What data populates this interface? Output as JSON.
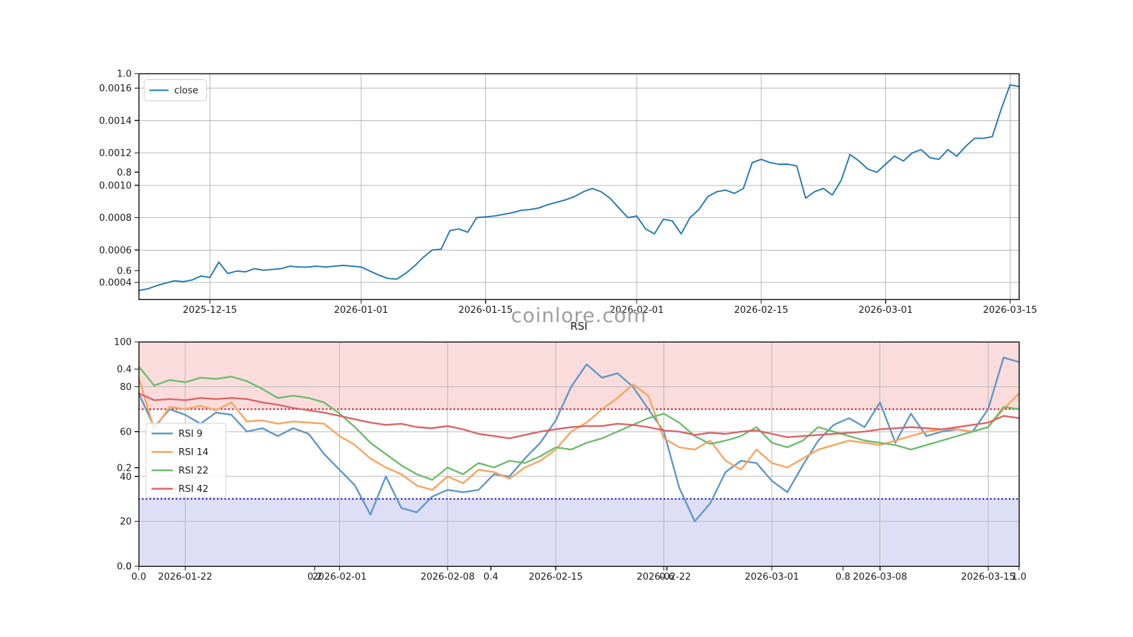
{
  "figure": {
    "watermark": "coinlore.com",
    "rsi_title": "RSI"
  },
  "chart_data": [
    {
      "type": "line",
      "name": "price",
      "legend": [
        "close"
      ],
      "x_tick_labels": [
        "2025-12-15",
        "2026-01-01",
        "2026-01-15",
        "2026-02-01",
        "2026-02-15",
        "2026-03-01",
        "2026-03-15"
      ],
      "x_tick_day_index": [
        8,
        25,
        39,
        56,
        70,
        84,
        98
      ],
      "y_tick_labels": [
        "0.0004",
        "0.0006",
        "0.0008",
        "0.0010",
        "0.0012",
        "0.0014",
        "0.0016"
      ],
      "y_tick_values": [
        0.0004,
        0.0006,
        0.0008,
        0.001,
        0.0012,
        0.0014,
        0.0016
      ],
      "ylim": [
        0.000295,
        0.00169
      ],
      "grid": true,
      "series": [
        {
          "name": "close",
          "color": "#1f77b4",
          "width": 1.9,
          "values": [
            0.00035,
            0.00036,
            0.00038,
            0.000395,
            0.00041,
            0.000405,
            0.000415,
            0.00044,
            0.00043,
            0.000525,
            0.000455,
            0.00047,
            0.000465,
            0.000485,
            0.000475,
            0.00048,
            0.000485,
            0.0005,
            0.000495,
            0.000495,
            0.0005,
            0.000495,
            0.0005,
            0.000505,
            0.0005,
            0.000495,
            0.00047,
            0.000445,
            0.000425,
            0.00042,
            0.000455,
            0.0005,
            0.000555,
            0.0006,
            0.000605,
            0.00072,
            0.00073,
            0.00071,
            0.0008,
            0.000805,
            0.00081,
            0.00082,
            0.00083,
            0.000845,
            0.00085,
            0.00086,
            0.00088,
            0.000895,
            0.00091,
            0.00093,
            0.00096,
            0.00098,
            0.00096,
            0.00092,
            0.00086,
            0.0008,
            0.00081,
            0.00073,
            0.0007,
            0.00079,
            0.00078,
            0.0007,
            0.0008,
            0.00085,
            0.00093,
            0.00096,
            0.00097,
            0.00095,
            0.00098,
            0.00114,
            0.00116,
            0.00114,
            0.00113,
            0.00113,
            0.00112,
            0.00092,
            0.00096,
            0.00098,
            0.00094,
            0.00103,
            0.00119,
            0.00115,
            0.0011,
            0.00108,
            0.00113,
            0.00118,
            0.00115,
            0.0012,
            0.00122,
            0.00117,
            0.00116,
            0.00122,
            0.00118,
            0.00124,
            0.00129,
            0.00129,
            0.0013,
            0.00147,
            0.00162,
            0.00161
          ]
        }
      ]
    },
    {
      "type": "line",
      "name": "rsi",
      "title": "RSI",
      "legend": [
        "RSI 9",
        "RSI 14",
        "RSI 22",
        "RSI 42"
      ],
      "x_tick_labels": [
        "2026-01-22",
        "2026-02-01",
        "2026-02-08",
        "2026-02-15",
        "2026-02-22",
        "2026-03-01",
        "2026-03-08",
        "2026-03-15"
      ],
      "x_tick_day_index": [
        3,
        13,
        20,
        27,
        34,
        41,
        48,
        55
      ],
      "y_tick_labels": [
        "0",
        "20",
        "40",
        "60",
        "80",
        "100"
      ],
      "y_tick_values": [
        0,
        20,
        40,
        60,
        80,
        100
      ],
      "ylim": [
        0,
        100
      ],
      "grid": true,
      "overbought_level": 70,
      "oversold_level": 30,
      "series": [
        {
          "name": "RSI 9",
          "color": "#5f97c6",
          "width": 2.4,
          "values": [
            77,
            62,
            70,
            67.5,
            63.5,
            68.5,
            67.5,
            60,
            61.5,
            58,
            61.5,
            59,
            50,
            43,
            36,
            23,
            40,
            26,
            24,
            31,
            34,
            33,
            34,
            41,
            40,
            48,
            55,
            65,
            80,
            90,
            84,
            86,
            80,
            70,
            60,
            35,
            20,
            28,
            42,
            47,
            46,
            38,
            33,
            45,
            56,
            63,
            66,
            62,
            73,
            55,
            68,
            58,
            60,
            61,
            60,
            70,
            93,
            91
          ]
        },
        {
          "name": "RSI 14",
          "color": "#fba35c",
          "width": 2.4,
          "values": [
            84,
            61,
            71,
            70,
            71.5,
            69.5,
            73,
            64.5,
            65,
            63.5,
            64.5,
            64,
            63.5,
            58,
            54,
            48,
            44,
            41,
            36,
            34,
            40,
            37,
            43,
            42,
            39,
            44,
            47,
            52,
            60,
            64,
            70,
            75,
            81,
            76,
            57,
            53,
            52,
            56,
            47,
            43,
            52,
            46,
            44,
            48,
            52,
            54,
            56,
            55,
            54,
            56,
            58,
            60,
            61,
            61,
            60,
            62,
            70,
            77
          ]
        },
        {
          "name": "RSI 22",
          "color": "#6cbc6c",
          "width": 2.4,
          "values": [
            89,
            80.5,
            83,
            82,
            84,
            83.5,
            84.5,
            82.5,
            79,
            75,
            76,
            75,
            73,
            68,
            62,
            55,
            50,
            45,
            41,
            38.5,
            44,
            41,
            46,
            44,
            47,
            46,
            49,
            53,
            52,
            55,
            57,
            60,
            63,
            66,
            68,
            64,
            58,
            54.5,
            56,
            58,
            62,
            55,
            53,
            56,
            62,
            60,
            58,
            56,
            55,
            54,
            52,
            54,
            56,
            58,
            60,
            62,
            71,
            70
          ]
        },
        {
          "name": "RSI 42",
          "color": "#dd6465",
          "width": 2.4,
          "values": [
            77,
            74,
            74.5,
            74,
            75,
            74.5,
            75,
            74.5,
            73,
            72,
            70.5,
            69.5,
            68.5,
            67,
            65.5,
            64,
            63,
            63.5,
            62,
            61.5,
            62.5,
            61,
            59,
            58,
            57,
            58.5,
            60,
            61,
            62,
            62.5,
            62.5,
            63.5,
            63,
            62,
            60.5,
            60,
            58.5,
            59.5,
            59,
            60,
            60.5,
            59,
            57.5,
            58,
            58.5,
            59,
            59.5,
            60,
            61,
            61.5,
            62,
            61.5,
            61,
            62,
            63,
            64,
            67,
            66
          ]
        }
      ]
    }
  ],
  "overlay_axis": {
    "x_tick_labels": [
      "0.0",
      "0.2",
      "0.4",
      "0.6",
      "0.8",
      "1.0"
    ],
    "y_tick_labels": [
      "0.0",
      "0.2",
      "0.4",
      "0.6",
      "0.8",
      "1.0"
    ]
  },
  "colors": {
    "background": "#ffffff",
    "grid": "#b8b8b8",
    "spine": "#1a1a1a",
    "tick_text": "#1c1c1c",
    "watermark": "#9e9e9e",
    "overbought_band": "#fadcdc",
    "oversold_band": "#dedef7",
    "overbought_line": "#dd1122",
    "oversold_line": "#1a1acc",
    "legend_border": "#d0d0d0"
  }
}
